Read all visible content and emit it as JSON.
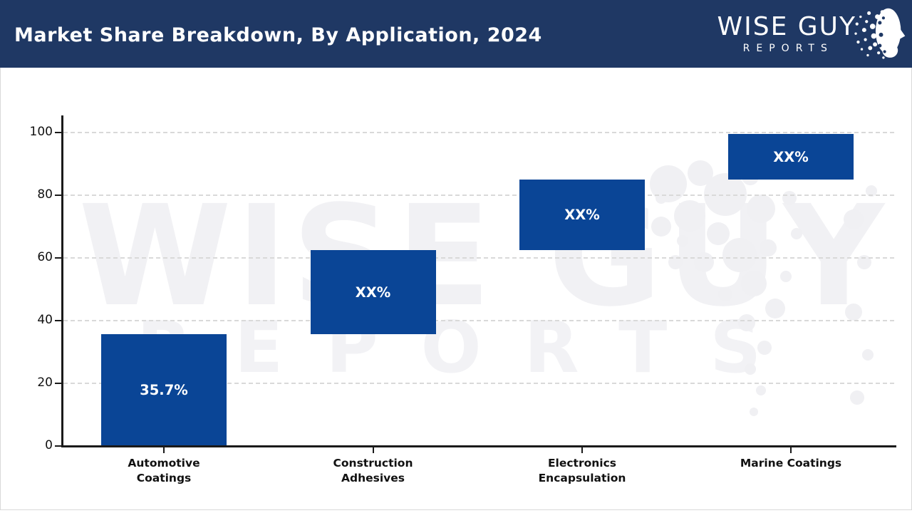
{
  "header": {
    "title": "Market Share Breakdown, By Application, 2024",
    "bg_color": "#1f3864",
    "logo": {
      "wordmark": "WISE GUY",
      "subtext": "REPORTS"
    }
  },
  "watermark": {
    "wordmark": "WISE GUY",
    "subtext": "REPORTS"
  },
  "chart_data": {
    "type": "bar",
    "subtype": "stepped-waterfall-share",
    "title": "Market Share Breakdown, By Application, 2024",
    "unit": "%",
    "categories": [
      "Automotive Coatings",
      "Construction Adhesives",
      "Electronics Encapsulation",
      "Marine Coatings"
    ],
    "category_label_lines": [
      [
        "Automotive",
        "Coatings"
      ],
      [
        "Construction",
        "Adhesives"
      ],
      [
        "Electronics",
        "Encapsulation"
      ],
      [
        "Marine Coatings"
      ]
    ],
    "segments": [
      {
        "category": "Automotive Coatings",
        "start": 0,
        "end": 35.7,
        "label": "35.7%"
      },
      {
        "category": "Construction Adhesives",
        "start": 35.7,
        "end": 62.5,
        "label": "XX%"
      },
      {
        "category": "Electronics Encapsulation",
        "start": 62.5,
        "end": 85.0,
        "label": "XX%"
      },
      {
        "category": "Marine Coatings",
        "start": 85.0,
        "end": 99.5,
        "label": "XX%"
      }
    ],
    "yticks": [
      "0",
      "20",
      "40",
      "60",
      "80",
      "100"
    ],
    "ylim": [
      0,
      105
    ],
    "bar_color": "#0a4596",
    "bar_label_color": "#ffffff",
    "axis_color": "#1a1a1a",
    "grid": {
      "axis": "y",
      "style": "dashed",
      "color": "#d9d9d9"
    },
    "legend": "none"
  }
}
